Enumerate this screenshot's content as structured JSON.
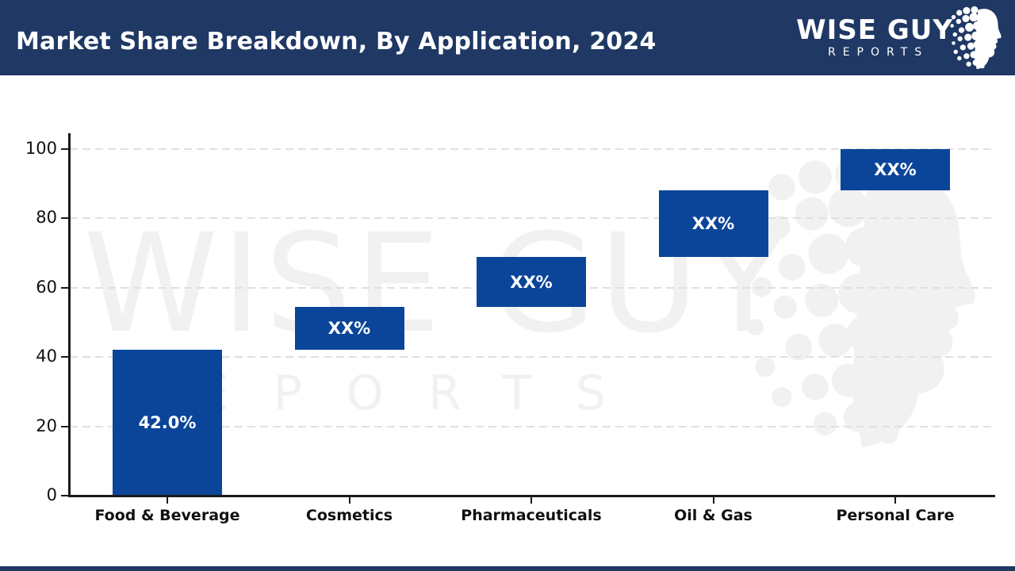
{
  "header": {
    "title": "Market Share Breakdown, By Application, 2024",
    "logo": {
      "name": "WISE GUY",
      "subtitle": "REPORTS"
    }
  },
  "watermark": {
    "name": "WISE GUY",
    "subtitle": "REPORTS"
  },
  "chart_data": {
    "type": "bar",
    "subtype": "waterfall",
    "title": "Market Share Breakdown, By Application, 2024",
    "categories": [
      "Food & Beverage",
      "Cosmetics",
      "Pharmaceuticals",
      "Oil & Gas",
      "Personal Care"
    ],
    "bars": [
      {
        "category": "Food & Beverage",
        "start": 0,
        "end": 42.0,
        "value": 42.0,
        "label": "42.0%"
      },
      {
        "category": "Cosmetics",
        "start": 42.0,
        "end": 54.3,
        "value": 12.3,
        "label": "XX%"
      },
      {
        "category": "Pharmaceuticals",
        "start": 54.3,
        "end": 68.9,
        "value": 14.6,
        "label": "XX%"
      },
      {
        "category": "Oil & Gas",
        "start": 68.9,
        "end": 88.0,
        "value": 19.1,
        "label": "XX%"
      },
      {
        "category": "Personal Care",
        "start": 88.0,
        "end": 100.0,
        "value": 12.0,
        "label": "XX%"
      }
    ],
    "y_ticks": [
      0,
      20,
      40,
      60,
      80,
      100
    ],
    "ylim": [
      0,
      105
    ],
    "xlabel": "",
    "ylabel": "",
    "grid": "horizontal-dashed",
    "legend_position": "none",
    "bar_color": "#0b4599",
    "bar_label_color": "#ffffff",
    "axis_color": "#1a1a1a",
    "gridline_color": "#e0e0e0"
  },
  "colors": {
    "header_bg": "#1f3864",
    "footer_bg": "#1f3864",
    "watermark": "#f1f1f1",
    "tick_text": "#111111"
  }
}
